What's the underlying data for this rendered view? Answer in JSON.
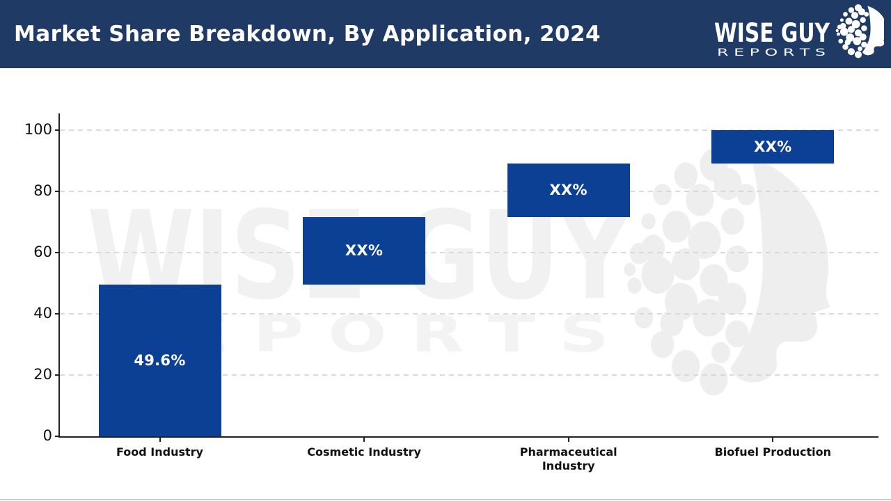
{
  "header": {
    "title": "Market Share Breakdown, By Application, 2024",
    "logo": {
      "line1": "WISE GUY",
      "line2": "R E P O R T S"
    }
  },
  "watermark": {
    "line1": "WISE GUY",
    "line2": "R E P O R T S"
  },
  "colors": {
    "header_bg": "#203a66",
    "bar": "#0b4094",
    "bar_label": "#ffffff",
    "grid": "#d9d9d9",
    "axis": "#222222",
    "tick_text": "#111111",
    "watermark": "#f1f1f1"
  },
  "chart_data": {
    "type": "bar",
    "subtype": "waterfall",
    "title": "Market Share Breakdown, By Application, 2024",
    "categories": [
      "Food Industry",
      "Cosmetic Industry",
      "Pharmaceutical Industry",
      "Biofuel Production"
    ],
    "segments": [
      {
        "category": "Food Industry",
        "start": 0,
        "end": 49.6,
        "label": "49.6%"
      },
      {
        "category": "Cosmetic Industry",
        "start": 49.6,
        "end": 71.6,
        "label": "XX%"
      },
      {
        "category": "Pharmaceutical Industry",
        "start": 71.6,
        "end": 89.1,
        "label": "XX%"
      },
      {
        "category": "Biofuel Production",
        "start": 89.1,
        "end": 100,
        "label": "XX%"
      }
    ],
    "ylim": [
      0,
      100
    ],
    "yticks": [
      0,
      20,
      40,
      60,
      80,
      100
    ],
    "grid": "horizontal-dashed",
    "legend": "none",
    "xlabel": "",
    "ylabel": ""
  }
}
